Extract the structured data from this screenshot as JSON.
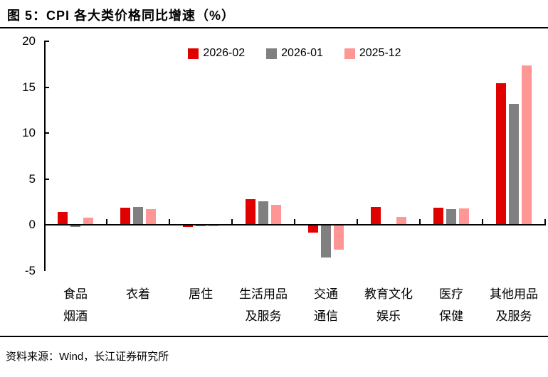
{
  "figure": {
    "title": "图 5：CPI 各大类价格同比增速（%）",
    "source": "资料来源：Wind，长江证券研究所"
  },
  "colors": {
    "series_red": "#e00000",
    "series_gray": "#808080",
    "series_pink": "#ff9696",
    "axis": "#000000",
    "text": "#000000"
  },
  "chart_data": {
    "type": "bar",
    "title": "图 5：CPI 各大类价格同比增速（%）",
    "categories": [
      "食品烟酒",
      "衣着",
      "居住",
      "生活用品及服务",
      "交通通信",
      "教育文化娱乐",
      "医疗保健",
      "其他用品及服务"
    ],
    "categories_wrapped": [
      "食品\n烟酒",
      "衣着",
      "居住",
      "生活用品\n及服务",
      "交通\n通信",
      "教育文化\n娱乐",
      "医疗\n保健",
      "其他用品\n及服务"
    ],
    "series": [
      {
        "name": "2026-02",
        "color": "#e00000",
        "values": [
          1.4,
          1.9,
          -0.2,
          2.8,
          -0.8,
          2.0,
          1.9,
          15.4
        ]
      },
      {
        "name": "2026-01",
        "color": "#808080",
        "values": [
          -0.2,
          2.0,
          -0.1,
          2.6,
          -3.5,
          0.0,
          1.7,
          13.2
        ]
      },
      {
        "name": "2025-12",
        "color": "#ff9696",
        "values": [
          0.8,
          1.7,
          -0.1,
          2.2,
          -2.7,
          0.9,
          1.8,
          17.4
        ]
      }
    ],
    "ylim": [
      -5,
      20
    ],
    "yticks": [
      20,
      15,
      10,
      5,
      0,
      -5
    ],
    "legend_position": "top-center",
    "grid": false,
    "xlabel": "",
    "ylabel": ""
  }
}
